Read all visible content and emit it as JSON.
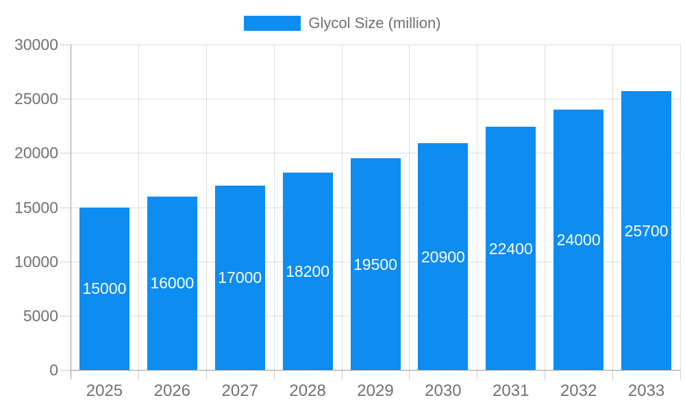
{
  "legend": {
    "label": "Glycol Size (million)"
  },
  "chart_data": {
    "type": "bar",
    "title": "",
    "categories": [
      "2025",
      "2026",
      "2027",
      "2028",
      "2029",
      "2030",
      "2031",
      "2032",
      "2033"
    ],
    "series": [
      {
        "name": "Glycol Size (million)",
        "color": "#0D8CF2",
        "values": [
          15000,
          16000,
          17000,
          18200,
          19500,
          20900,
          22400,
          24000,
          25700
        ]
      }
    ],
    "xlabel": "",
    "ylabel": "",
    "ylim": [
      0,
      30000
    ],
    "yticks": [
      0,
      5000,
      10000,
      15000,
      20000,
      25000,
      30000
    ],
    "grid": true,
    "legend_position": "top-center",
    "value_labels": "inside-center"
  },
  "colors": {
    "bar": "#0D8CF2",
    "grid_line": "#DDDDDD",
    "axis_line": "#999999",
    "tick_mark": "#CCCCCC",
    "axis_text": "#707070",
    "value_label_text": "#FFFFFF",
    "background": "#FFFFFF"
  }
}
